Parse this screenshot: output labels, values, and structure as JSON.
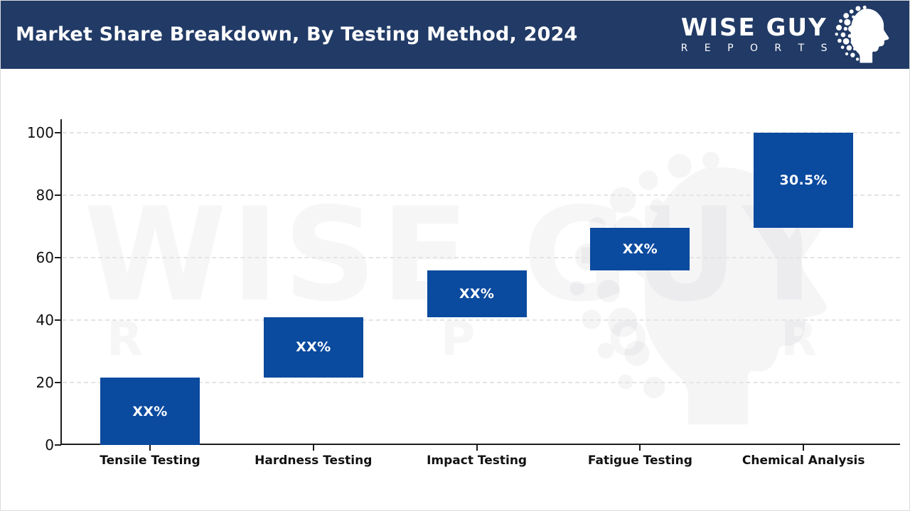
{
  "header": {
    "title": "Market Share Breakdown, By Testing Method, 2024",
    "logo": {
      "line1": "WISE GUY",
      "line2": "R E P O R T S"
    }
  },
  "watermark": {
    "line1": "WISE GUY",
    "line2": "REPORTS"
  },
  "colors": {
    "header_bg": "#213a66",
    "bar": "#0a4a9f",
    "bar_label_text": "#ffffff",
    "axis_text": "#111111",
    "gridline": "#e4e4e4",
    "background": "#ffffff"
  },
  "chart_data": {
    "type": "bar",
    "subtype": "waterfall",
    "title": "Market Share Breakdown, By Testing Method, 2024",
    "categories": [
      "Tensile Testing",
      "Hardness Testing",
      "Impact Testing",
      "Fatigue Testing",
      "Chemical Analysis"
    ],
    "series": [
      {
        "name": "Market Share",
        "base": [
          0,
          21.5,
          41,
          56,
          69.5
        ],
        "values": [
          21.5,
          19.5,
          15,
          13.5,
          30.5
        ]
      }
    ],
    "bar_labels": [
      "XX%",
      "XX%",
      "XX%",
      "XX%",
      "30.5%"
    ],
    "xlabel": "",
    "ylabel": "",
    "yticks": [
      0,
      20,
      40,
      60,
      80,
      100
    ],
    "ylim": [
      0,
      100
    ],
    "grid": "horizontal-dashed",
    "legend": "none"
  }
}
